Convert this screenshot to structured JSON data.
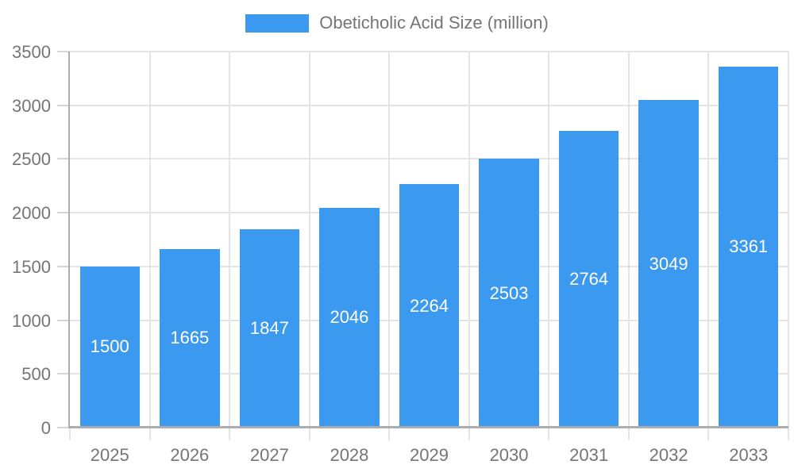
{
  "legend": {
    "label": "Obeticholic Acid Size (million)"
  },
  "chart_data": {
    "type": "bar",
    "title": "Obeticholic Acid Size (million)",
    "categories": [
      "2025",
      "2026",
      "2027",
      "2028",
      "2029",
      "2030",
      "2031",
      "2032",
      "2033"
    ],
    "series": [
      {
        "name": "Obeticholic Acid Size (million)",
        "values": [
          1500,
          1665,
          1847,
          2046,
          2264,
          2503,
          2764,
          3049,
          3361
        ]
      }
    ],
    "xlabel": "",
    "ylabel": "",
    "ylim": [
      0,
      3500
    ],
    "yticks": [
      0,
      500,
      1000,
      1500,
      2000,
      2500,
      3000,
      3500
    ],
    "grid": true,
    "legend_position": "top",
    "value_labels_position": "inside-center",
    "bar_width_fraction": 0.75,
    "colors": {
      "bar": "#3B99F0",
      "value_label": "#FFFFFF",
      "axis_text": "#757575",
      "legend_text": "#757575",
      "grid_line": "#E4E4E4",
      "tick_line": "#D6D6D6",
      "axis_line": "#ADADAD",
      "background": "#FFFFFF"
    }
  }
}
